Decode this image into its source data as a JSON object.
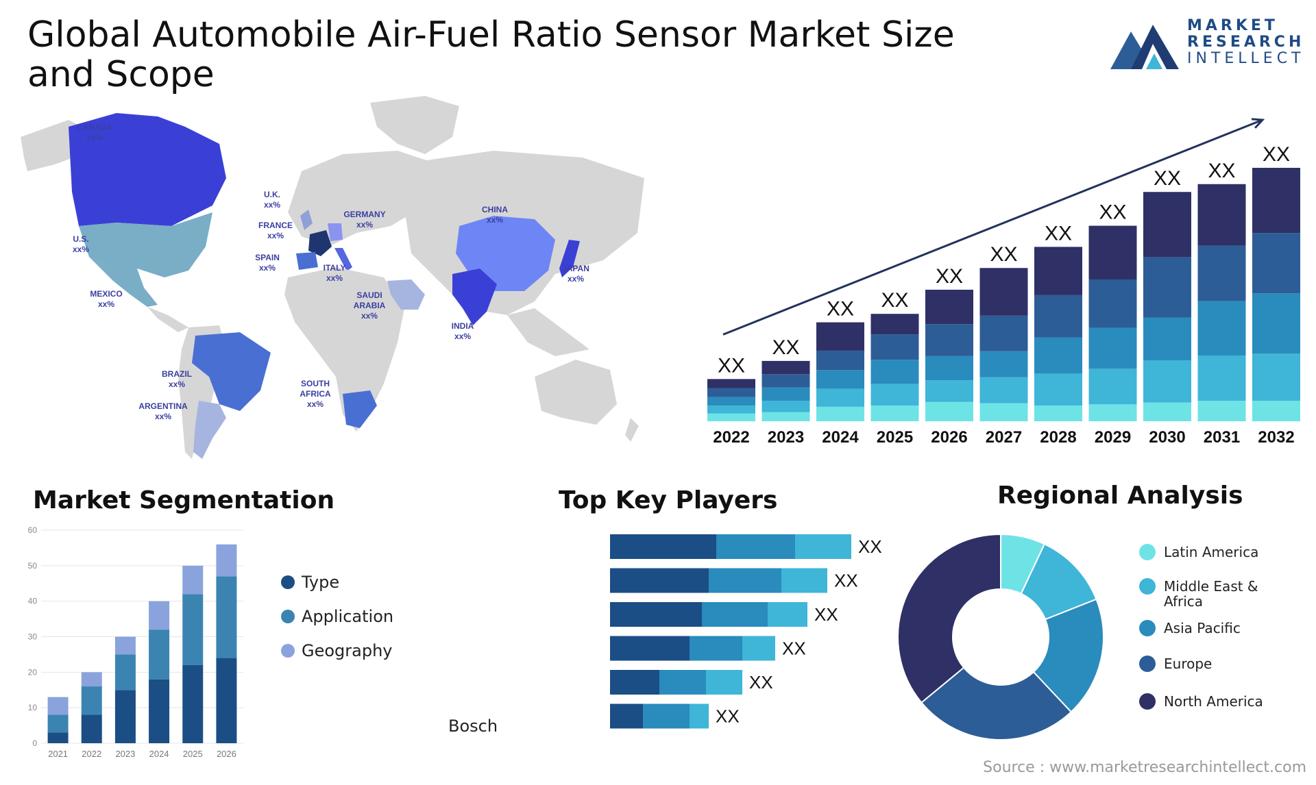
{
  "title": "Global Automobile Air-Fuel Ratio Sensor Market Size and Scope",
  "logo": {
    "line1": "MARKET",
    "line2": "RESEARCH",
    "line3": "INTELLECT"
  },
  "source": "Source : www.marketresearchintellect.com",
  "colors": {
    "navy": "#2e3066",
    "blue1": "#2d5d96",
    "blue2": "#2a8bbd",
    "blue3": "#3fb5d8",
    "cyan": "#6ee3e6",
    "seg_type": "#1b4e85",
    "seg_app": "#3b84b1",
    "seg_geo": "#8aa3dc",
    "map_land": "#d6d6d6"
  },
  "map": {
    "labels": [
      {
        "name": "CANADA",
        "value": "xx%"
      },
      {
        "name": "U.S.",
        "value": "xx%"
      },
      {
        "name": "MEXICO",
        "value": "xx%"
      },
      {
        "name": "BRAZIL",
        "value": "xx%"
      },
      {
        "name": "ARGENTINA",
        "value": "xx%"
      },
      {
        "name": "U.K.",
        "value": "xx%"
      },
      {
        "name": "FRANCE",
        "value": "xx%"
      },
      {
        "name": "SPAIN",
        "value": "xx%"
      },
      {
        "name": "GERMANY",
        "value": "xx%"
      },
      {
        "name": "ITALY",
        "value": "xx%"
      },
      {
        "name": "SAUDI ARABIA",
        "value": "xx%"
      },
      {
        "name": "SOUTH AFRICA",
        "value": "xx%"
      },
      {
        "name": "CHINA",
        "value": "xx%"
      },
      {
        "name": "INDIA",
        "value": "xx%"
      },
      {
        "name": "JAPAN",
        "value": "xx%"
      }
    ]
  },
  "chart_data": [
    {
      "type": "bar",
      "stacked": true,
      "categories": [
        "2022",
        "2023",
        "2024",
        "2025",
        "2026",
        "2027",
        "2028",
        "2029",
        "2030",
        "2031",
        "2032"
      ],
      "data_labels": [
        "XX",
        "XX",
        "XX",
        "XX",
        "XX",
        "XX",
        "XX",
        "XX",
        "XX",
        "XX",
        "XX"
      ],
      "series": [
        {
          "values": [
            1.3,
            1.5,
            2.4,
            2.6,
            3.2,
            3.0,
            2.6,
            2.8,
            3.1,
            3.4,
            3.4
          ],
          "color": "#6ee3e6"
        },
        {
          "values": [
            1.3,
            1.9,
            3.0,
            3.6,
            3.6,
            4.3,
            5.3,
            5.9,
            7.0,
            7.5,
            7.8
          ],
          "color": "#3fb5d8"
        },
        {
          "values": [
            1.4,
            2.2,
            3.1,
            4.0,
            4.0,
            4.3,
            6.0,
            6.8,
            7.1,
            9.0,
            10.0
          ],
          "color": "#2a8bbd"
        },
        {
          "values": [
            1.5,
            2.2,
            3.2,
            4.2,
            5.3,
            5.9,
            7.0,
            8.0,
            10.0,
            9.2,
            10.0
          ],
          "color": "#2d5d96"
        },
        {
          "values": [
            1.5,
            2.2,
            4.7,
            3.4,
            5.7,
            7.9,
            8.0,
            8.9,
            10.8,
            10.2,
            10.8
          ],
          "color": "#2e3066"
        }
      ],
      "trend_arrow": true
    },
    {
      "type": "bar",
      "stacked": true,
      "title": "Market Segmentation",
      "categories": [
        "2021",
        "2022",
        "2023",
        "2024",
        "2025",
        "2026"
      ],
      "ylim": [
        0,
        60
      ],
      "yticks": [
        0,
        10,
        20,
        30,
        40,
        50,
        60
      ],
      "series": [
        {
          "name": "Type",
          "values": [
            3,
            8,
            15,
            18,
            22,
            24
          ],
          "color": "#1b4e85"
        },
        {
          "name": "Application",
          "values": [
            5,
            8,
            10,
            14,
            20,
            23
          ],
          "color": "#3b84b1"
        },
        {
          "name": "Geography",
          "values": [
            5,
            4,
            5,
            8,
            8,
            9
          ],
          "color": "#8aa3dc"
        }
      ]
    },
    {
      "type": "bar",
      "orientation": "horizontal",
      "stacked": true,
      "title": "Top Key Players",
      "categories": [
        "",
        "",
        "",
        "",
        "",
        "Bosch"
      ],
      "data_labels": [
        "XX",
        "XX",
        "XX",
        "XX",
        "XX",
        "XX"
      ],
      "series": [
        {
          "values": [
            155,
            144,
            134,
            116,
            72,
            48
          ],
          "color": "#1b4e85"
        },
        {
          "values": [
            115,
            106,
            96,
            77,
            68,
            68
          ],
          "color": "#2a8bbd"
        },
        {
          "values": [
            82,
            67,
            58,
            48,
            53,
            28
          ],
          "color": "#3fb5d8"
        }
      ]
    },
    {
      "type": "pie",
      "donut": true,
      "title": "Regional Analysis",
      "series": [
        {
          "name": "Latin America",
          "value": 7,
          "color": "#6ee3e6"
        },
        {
          "name": "Middle East & Africa",
          "value": 12,
          "color": "#3fb5d8"
        },
        {
          "name": "Asia Pacific",
          "value": 19,
          "color": "#2a8bbd"
        },
        {
          "name": "Europe",
          "value": 26,
          "color": "#2d5d96"
        },
        {
          "name": "North America",
          "value": 36,
          "color": "#2e3066"
        }
      ]
    }
  ]
}
